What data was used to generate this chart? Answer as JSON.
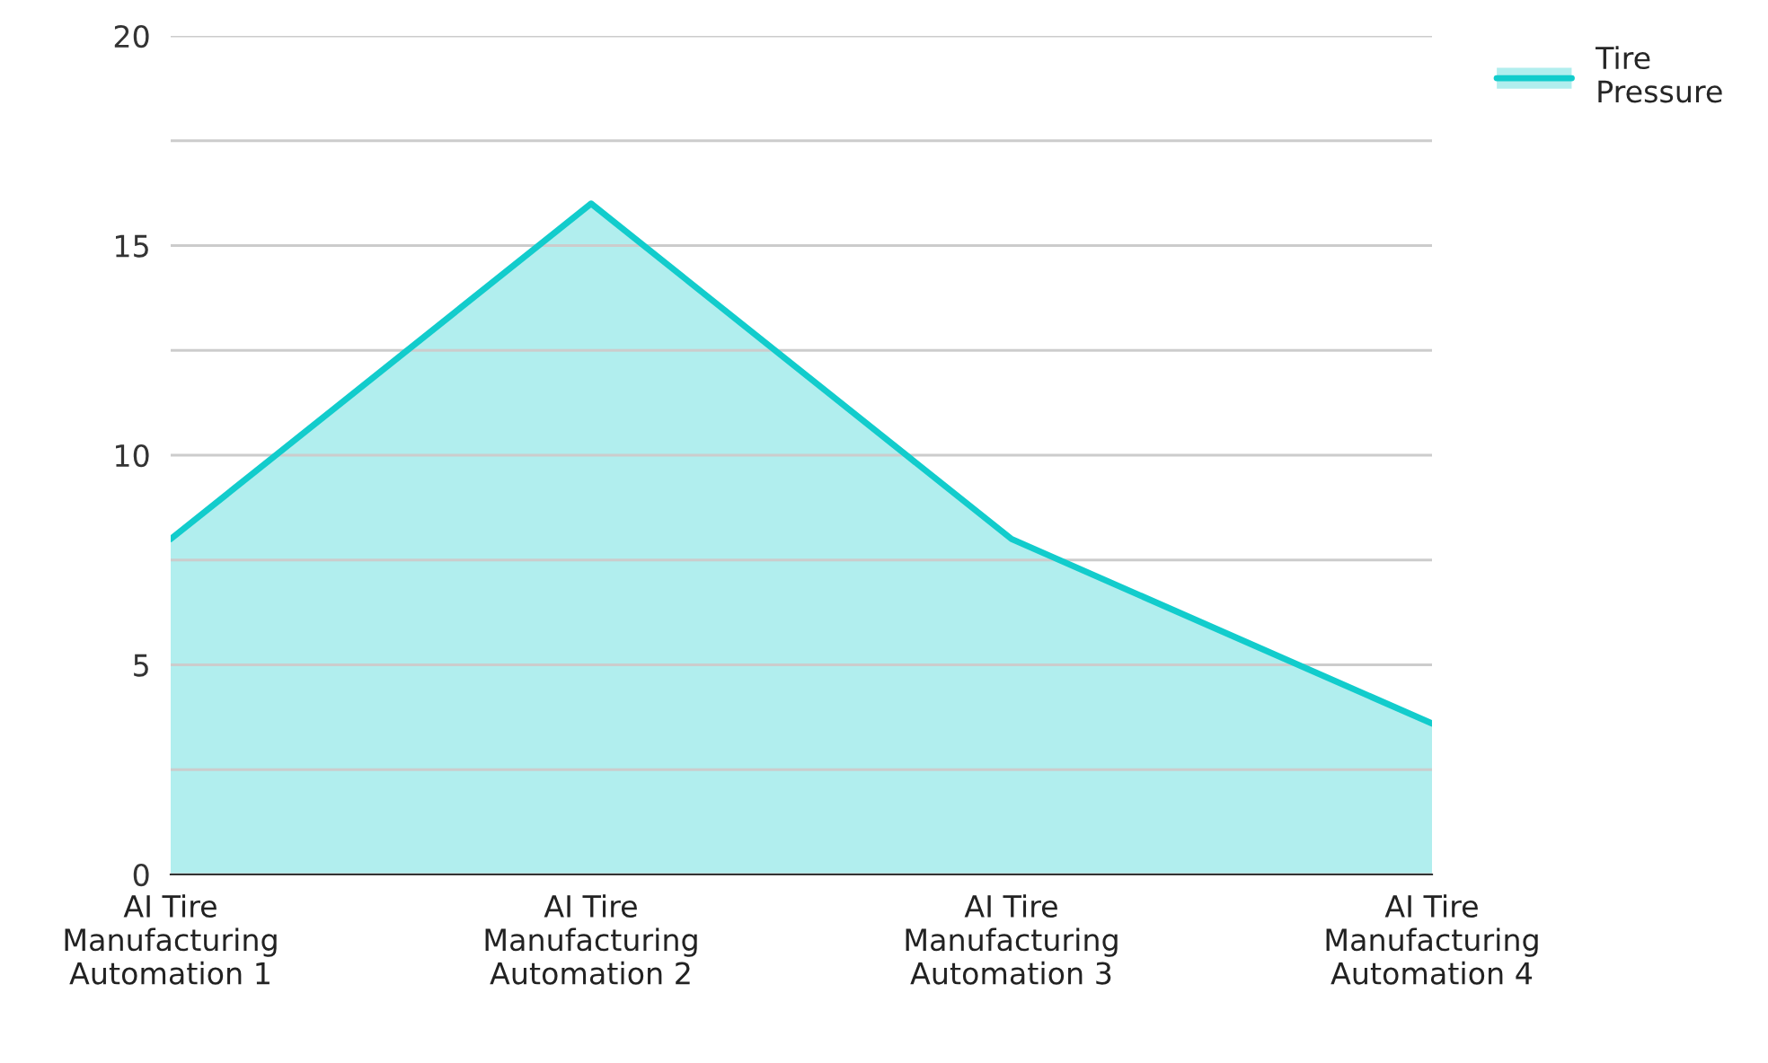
{
  "chart_data": {
    "type": "area",
    "categories": [
      "AI Tire\nManufacturing\nAutomation 1",
      "AI Tire\nManufacturing\nAutomation 2",
      "AI Tire\nManufacturing\nAutomation 3",
      "AI Tire\nManufacturing\nAutomation 4"
    ],
    "series": [
      {
        "name": "Tire\nPressure",
        "color": "#12cccc",
        "values": [
          8,
          16,
          8,
          3.6
        ]
      }
    ],
    "ylim": [
      0,
      20
    ],
    "yticks": [
      0,
      {
        "value": 2.5,
        "label": null
      },
      5,
      {
        "value": 7.5,
        "label": null
      },
      10,
      {
        "value": 12.5,
        "label": null
      },
      15,
      {
        "value": 17.5,
        "label": null
      },
      20
    ],
    "grid": "y",
    "legend": "top right"
  }
}
